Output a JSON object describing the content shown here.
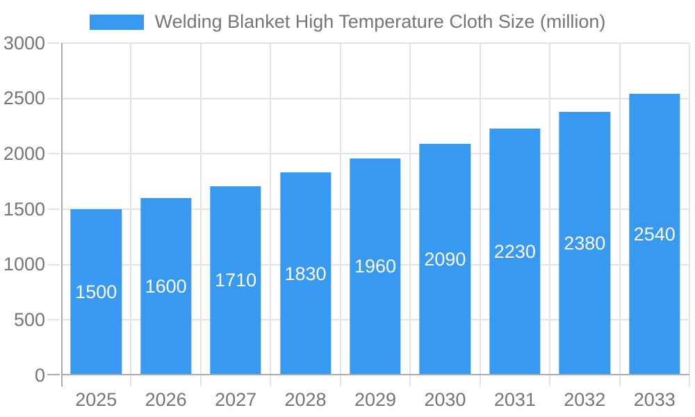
{
  "legend": {
    "label": "Welding Blanket High Temperature Cloth Size (million)"
  },
  "chart_data": {
    "type": "bar",
    "title": "Welding Blanket High Temperature Cloth Size (million)",
    "categories": [
      "2025",
      "2026",
      "2027",
      "2028",
      "2029",
      "2030",
      "2031",
      "2032",
      "2033"
    ],
    "values": [
      1500,
      1600,
      1710,
      1830,
      1960,
      2090,
      2230,
      2380,
      2540
    ],
    "xlabel": "",
    "ylabel": "",
    "ylim": [
      0,
      3000
    ],
    "yticks": [
      0,
      500,
      1000,
      1500,
      2000,
      2500,
      3000
    ],
    "grid": true,
    "legend_position": "top-center",
    "bar_label_position": "inside-center",
    "colors": {
      "bar": "#3899F0",
      "bar_label": "#FFFFFF",
      "axis_text": "#757575",
      "axis_line": "#ABABAB",
      "grid_line": "#E3E3E3",
      "background": "#FFFFFF"
    }
  }
}
